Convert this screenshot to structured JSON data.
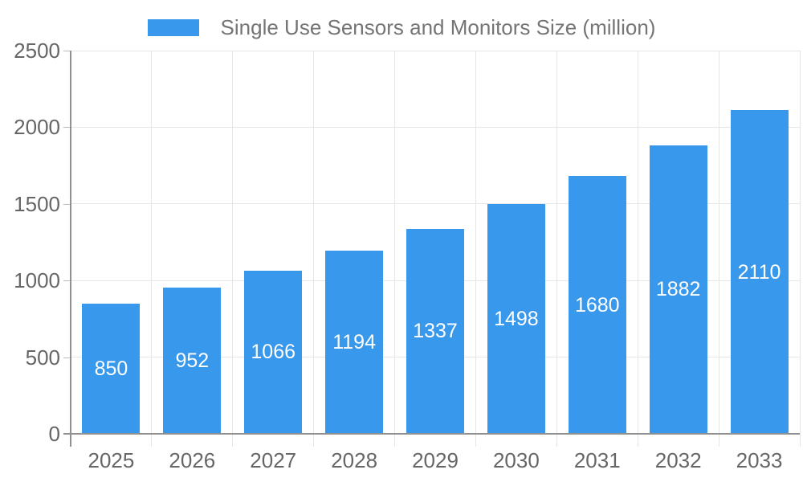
{
  "chart_data": {
    "type": "bar",
    "title": "Single Use Sensors and Monitors Size (million)",
    "legend_label": "Single Use Sensors and Monitors Size (million)",
    "legend_position": "top",
    "categories": [
      "2025",
      "2026",
      "2027",
      "2028",
      "2029",
      "2030",
      "2031",
      "2032",
      "2033"
    ],
    "values": [
      850,
      952,
      1066,
      1194,
      1337,
      1498,
      1680,
      1882,
      2110
    ],
    "series": [
      {
        "name": "Single Use Sensors and Monitors Size (million)",
        "values": [
          850,
          952,
          1066,
          1194,
          1337,
          1498,
          1680,
          1882,
          2110
        ]
      }
    ],
    "xlabel": "",
    "ylabel": "",
    "ylim": [
      0,
      2500
    ],
    "y_ticks": [
      0,
      500,
      1000,
      1500,
      2000,
      2500
    ],
    "grid": true,
    "colors": {
      "bar": "#3898EC",
      "value_label": "#FFFFFF",
      "grid_line": "#E6E6E6",
      "tick_mark": "#BBBBBB",
      "axis_line": "#909090",
      "tick_label": "#666666",
      "legend_text": "#757575",
      "background": "#FFFFFF"
    }
  }
}
